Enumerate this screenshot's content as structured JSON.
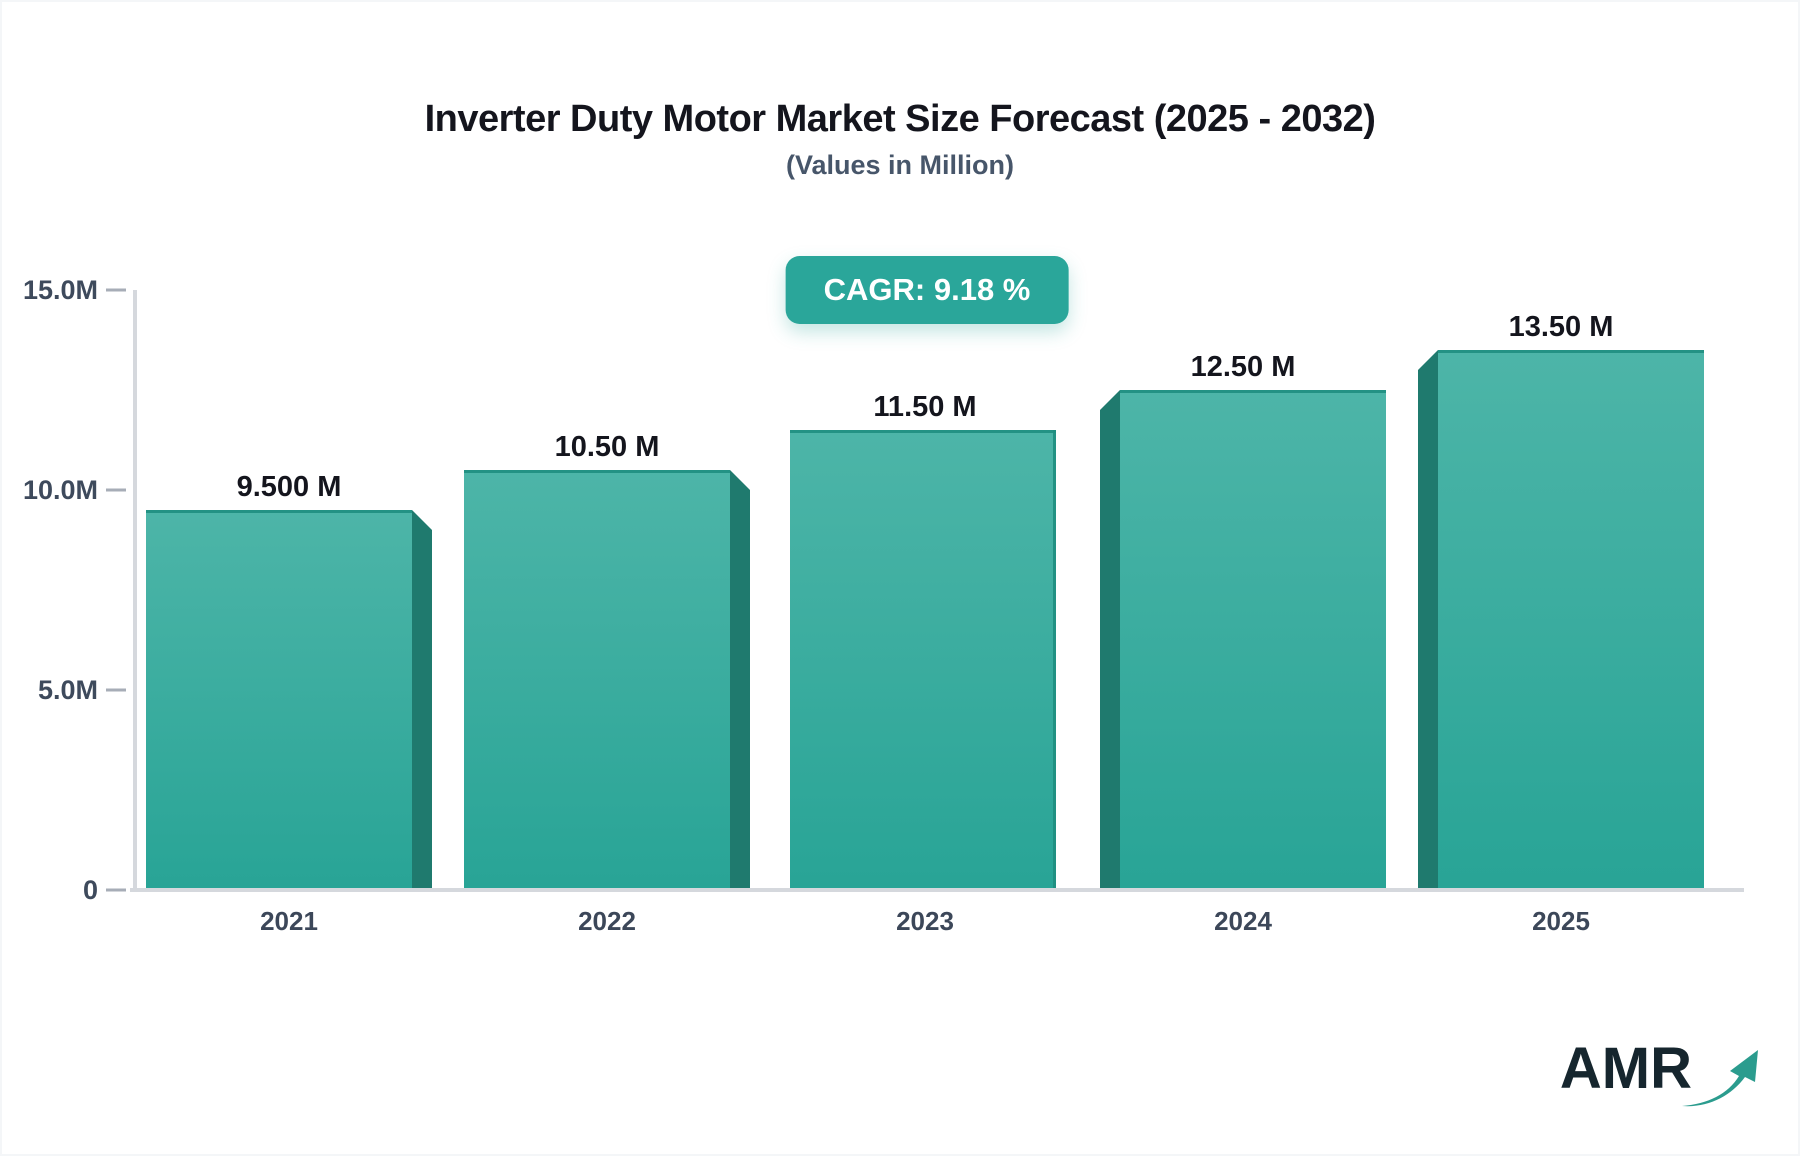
{
  "header": {
    "title": "Inverter Duty Motor Market Size Forecast (2025 - 2032)",
    "subtitle": "(Values in Million)"
  },
  "badge": {
    "label": "CAGR: 9.18 %",
    "bg_color": "#2aa69a",
    "text_color": "#ffffff"
  },
  "chart_data": {
    "type": "bar",
    "title": "Inverter Duty Motor Market Size Forecast (2025 - 2032)",
    "subtitle": "(Values in Million)",
    "categories": [
      "2021",
      "2022",
      "2023",
      "2024",
      "2025"
    ],
    "values": [
      9.5,
      10.5,
      11.5,
      12.5,
      13.5
    ],
    "bar_labels": [
      "9.500 M",
      "10.50 M",
      "11.50 M",
      "12.50 M",
      "13.50 M"
    ],
    "unit": "Million",
    "ylim": [
      0,
      15
    ],
    "yticks": [
      {
        "value": 0,
        "label": "0"
      },
      {
        "value": 5,
        "label": "5.0M"
      },
      {
        "value": 10,
        "label": "10.0M"
      },
      {
        "value": 15,
        "label": "15.0M"
      }
    ],
    "grid": false,
    "legend": null,
    "colors": {
      "bar_top": "#4db5a8",
      "bar_bottom": "#28a496",
      "bar_side": "#1f7a6e",
      "bar_edge": "#1f8e80",
      "axis_line": "#d5d8dd",
      "tick_dash": "#a7adb7",
      "tick_label": "#3e4a5c",
      "x_label": "#3c4759",
      "value_label": "#14151d"
    }
  },
  "logo": {
    "text": "AMR",
    "text_color": "#16262e",
    "arrow_color": "#2b9c8e",
    "arrow_icon": "growth-arrow"
  }
}
